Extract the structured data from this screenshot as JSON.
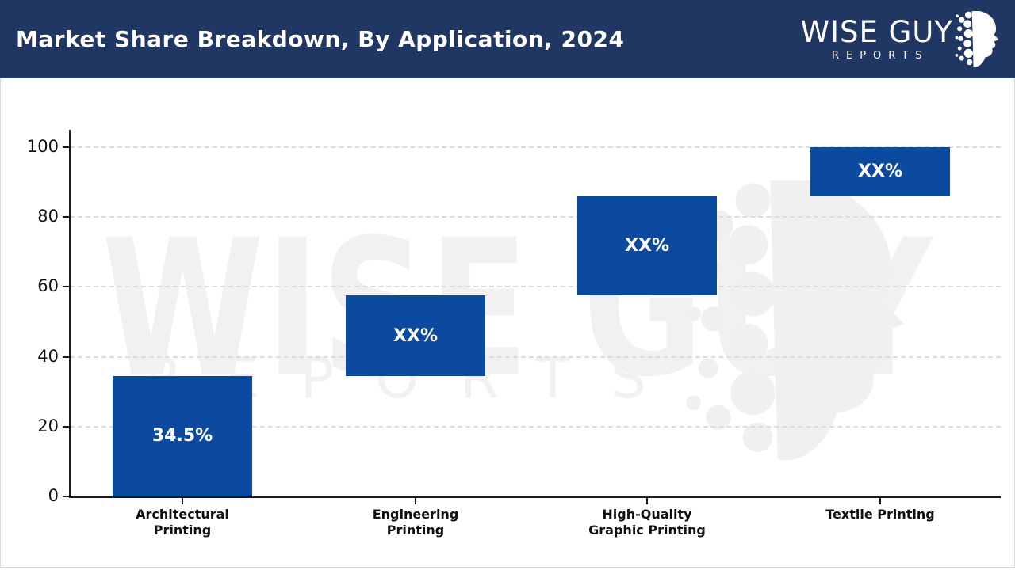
{
  "header": {
    "title": "Market Share Breakdown, By Application, 2024",
    "bg_color": "#203764",
    "text_color": "#ffffff",
    "logo": {
      "line1": "WISE GUY",
      "line2": "REPORTS"
    }
  },
  "watermark": {
    "line1": "WISE GUY",
    "line2": "REPORTS"
  },
  "chart_data": {
    "type": "bar",
    "subtype": "waterfall",
    "title": "Market Share Breakdown, By Application, 2024",
    "xlabel": "",
    "ylabel": "",
    "ylim": [
      0,
      100
    ],
    "yticks": [
      0,
      20,
      40,
      60,
      80,
      100
    ],
    "grid": "horizontal-dashed",
    "legend": "none",
    "bar_color": "#0b4a9f",
    "bar_label_color": "#ffffff",
    "categories": [
      "Architectural\nPrinting",
      "Engineering\nPrinting",
      "High-Quality\nGraphic Printing",
      "Textile Printing"
    ],
    "segments": [
      {
        "category": "Architectural Printing",
        "start": 0,
        "end": 34.5,
        "label": "34.5%"
      },
      {
        "category": "Engineering Printing",
        "start": 34.5,
        "end": 57.5,
        "label": "XX%"
      },
      {
        "category": "High-Quality Graphic Printing",
        "start": 57.5,
        "end": 86,
        "label": "XX%"
      },
      {
        "category": "Textile Printing",
        "start": 86,
        "end": 100,
        "label": "XX%"
      }
    ]
  }
}
